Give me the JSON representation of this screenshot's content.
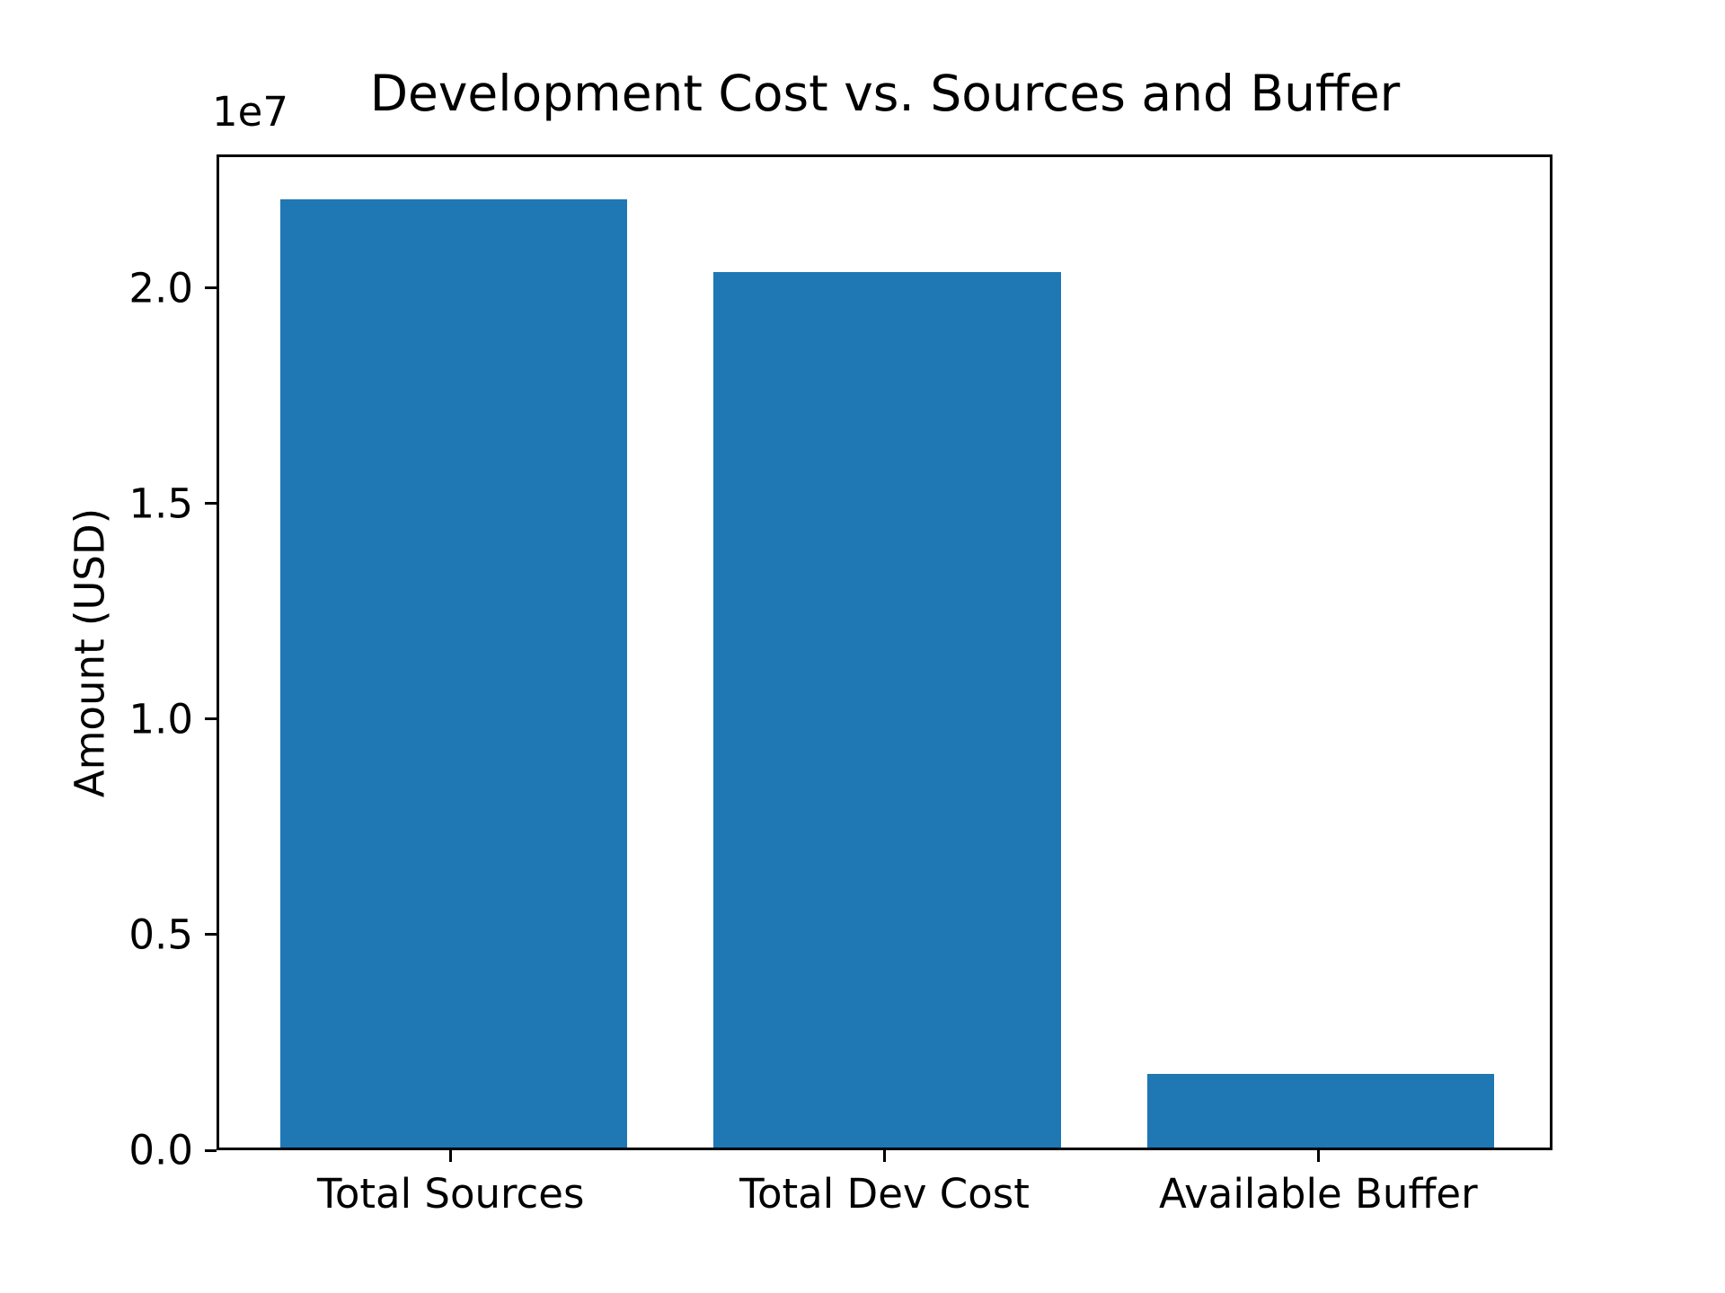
{
  "figure": {
    "background_color": "#ffffff",
    "text_color": "#000000"
  },
  "chart_data": {
    "type": "bar",
    "title": "Development Cost vs. Sources and Buffer",
    "xlabel": "",
    "ylabel": "Amount (USD)",
    "categories": [
      "Total Sources",
      "Total Dev Cost",
      "Available Buffer"
    ],
    "values": [
      22000000,
      20300000,
      1700000
    ],
    "bar_color": "#1f77b4",
    "ylim": [
      0,
      23100000
    ],
    "ytick_values": [
      0,
      5000000,
      10000000,
      15000000,
      20000000
    ],
    "ytick_labels": [
      "0.0",
      "0.5",
      "1.0",
      "1.5",
      "2.0"
    ],
    "y_offset_text": "1e7",
    "grid": false,
    "legend_position": "none",
    "bar_width_fraction": 0.8,
    "x_axis_units": [
      0,
      1,
      2
    ],
    "xlim": [
      -0.54,
      2.54
    ]
  }
}
